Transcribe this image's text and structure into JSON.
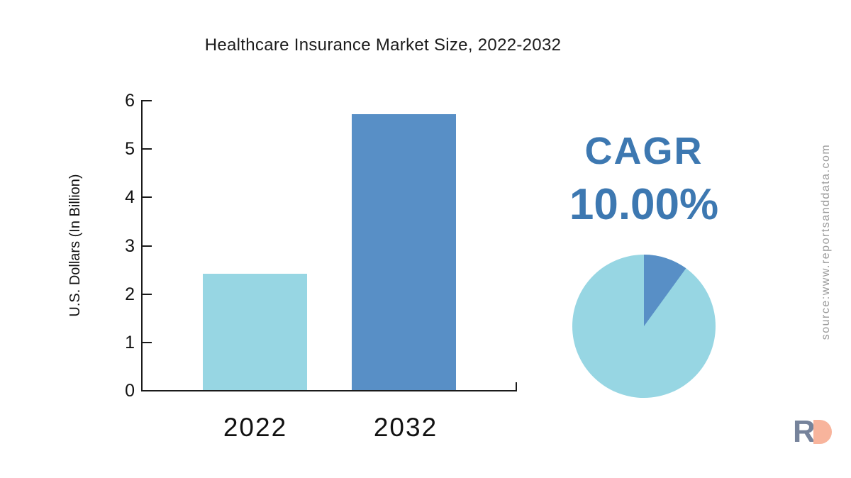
{
  "chart_data": [
    {
      "type": "bar",
      "title": "Healthcare Insurance Market Size, 2022-2032",
      "categories": [
        "2022",
        "2032"
      ],
      "values": [
        2.4,
        5.7
      ],
      "xlabel": "",
      "ylabel": "U.S. Dollars (In Billion)",
      "ylim": [
        0,
        6
      ],
      "yticks": [
        0,
        1,
        2,
        3,
        4,
        5,
        6
      ],
      "bar_colors": [
        "#97d6e3",
        "#588fc6"
      ],
      "grid": false,
      "legend": false
    },
    {
      "type": "pie",
      "values": [
        10,
        90
      ],
      "colors": [
        "#588fc6",
        "#97d6e3"
      ],
      "start_angle_deg": 0,
      "direction": "clockwise"
    }
  ],
  "cagr": {
    "label": "CAGR",
    "value": "10.00%",
    "percent": 10,
    "color": "#3d78b1"
  },
  "source": {
    "text": "source:www.reportsanddata.com",
    "color": "#9b9b9b"
  },
  "logo": {
    "r": "R",
    "r_color": "#76839b",
    "d_color": "#f8b49c"
  },
  "axis_color": "#1a1a1a"
}
